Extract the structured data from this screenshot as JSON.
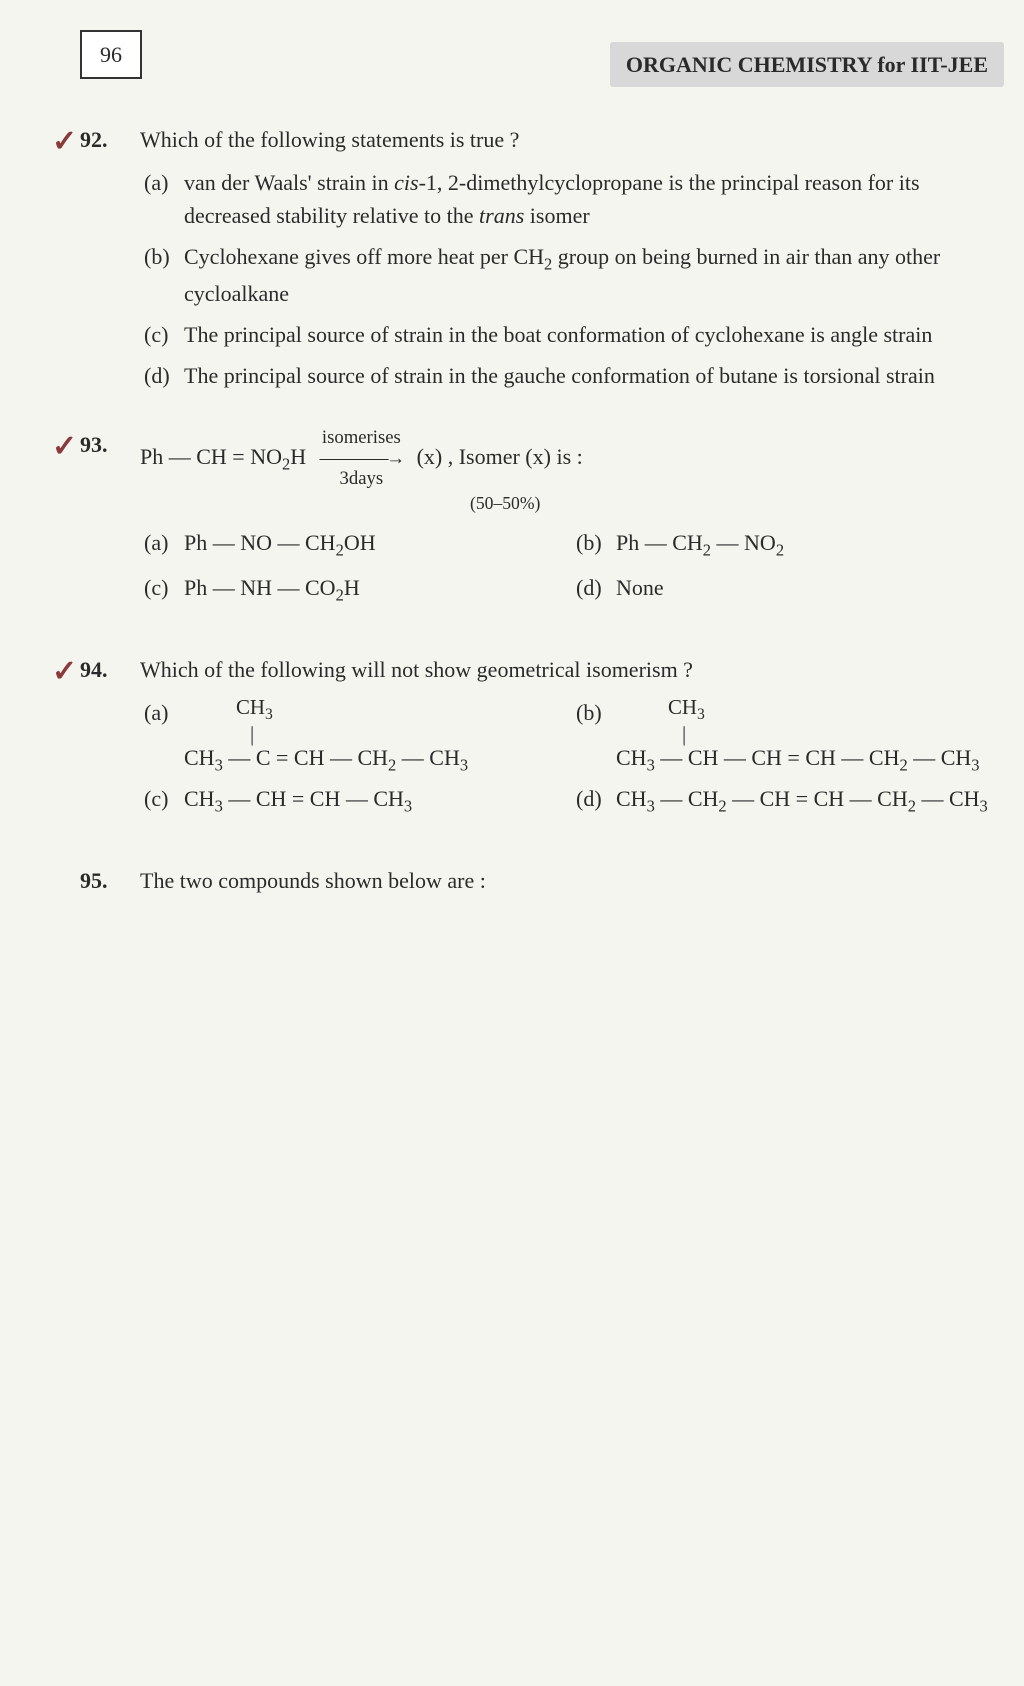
{
  "page_number": "96",
  "header_badge": "ORGANIC CHEMISTRY for IIT-JEE",
  "q92": {
    "num": "92.",
    "text": "Which of the following statements is true ?",
    "a_label": "(a)",
    "a_text_1": "van der Waals' strain in ",
    "a_text_cis": "cis",
    "a_text_2": "-1, 2-dimethylcyclopropane is the principal reason for its decreased stability relative to the ",
    "a_text_trans": "trans",
    "a_text_3": " isomer",
    "b_label": "(b)",
    "b_text": "Cyclohexane gives off more heat per CH",
    "b_sub": "2",
    "b_text2": " group on being burned in air than any other cycloalkane",
    "c_label": "(c)",
    "c_text": "The principal source of strain in the boat conformation of cyclohexane is angle strain",
    "d_label": "(d)",
    "d_text": "The principal source of strain in the gauche conformation of butane is torsional strain"
  },
  "q93": {
    "num": "93.",
    "stem_pre": "Ph — CH = NO",
    "stem_sub": "2",
    "stem_h": "H ",
    "arrow_top": "isomerises",
    "arrow_mid": "————→",
    "arrow_bot": "3days",
    "stem_post": " (x) , Isomer (x) is :",
    "under_note": "(50–50%)",
    "a_label": "(a)",
    "a_text": "Ph — NO — CH",
    "a_sub": "2",
    "a_tail": "OH",
    "b_label": "(b)",
    "b_text": "Ph — CH",
    "b_sub": "2",
    "b_mid": " — NO",
    "b_sub2": "2",
    "c_label": "(c)",
    "c_text": "Ph — NH — CO",
    "c_sub": "2",
    "c_tail": "H",
    "d_label": "(d)",
    "d_text": "None"
  },
  "q94": {
    "num": "94.",
    "text": "Which of the following will not show geometrical isomerism ?",
    "a_label": "(a)",
    "a_upper": "CH",
    "a_upper_sub": "3",
    "a_pipe": "|",
    "a_lower_1": "CH",
    "a_lower_1s": "3",
    "a_lower_2": " — C = CH — CH",
    "a_lower_2s": "2",
    "a_lower_3": " — CH",
    "a_lower_3s": "3",
    "b_label": "(b)",
    "b_upper": "CH",
    "b_upper_sub": "3",
    "b_pipe": "|",
    "b_lower_1": "CH",
    "b_lower_1s": "3",
    "b_lower_2": " — CH — CH = CH — CH",
    "b_lower_2s": "2",
    "b_lower_3": " — CH",
    "b_lower_3s": "3",
    "c_label": "(c)",
    "c_text_1": "CH",
    "c_s1": "3",
    "c_text_2": " — CH = CH — CH",
    "c_s2": "3",
    "d_label": "(d)",
    "d_text_1": "CH",
    "d_s1": "3",
    "d_text_2": " — CH",
    "d_s2": "2",
    "d_text_3": " — CH = CH — CH",
    "d_s3": "2",
    "d_text_4": " — CH",
    "d_s4": "3"
  },
  "q95": {
    "num": "95.",
    "text": "The two compounds shown below are :"
  }
}
